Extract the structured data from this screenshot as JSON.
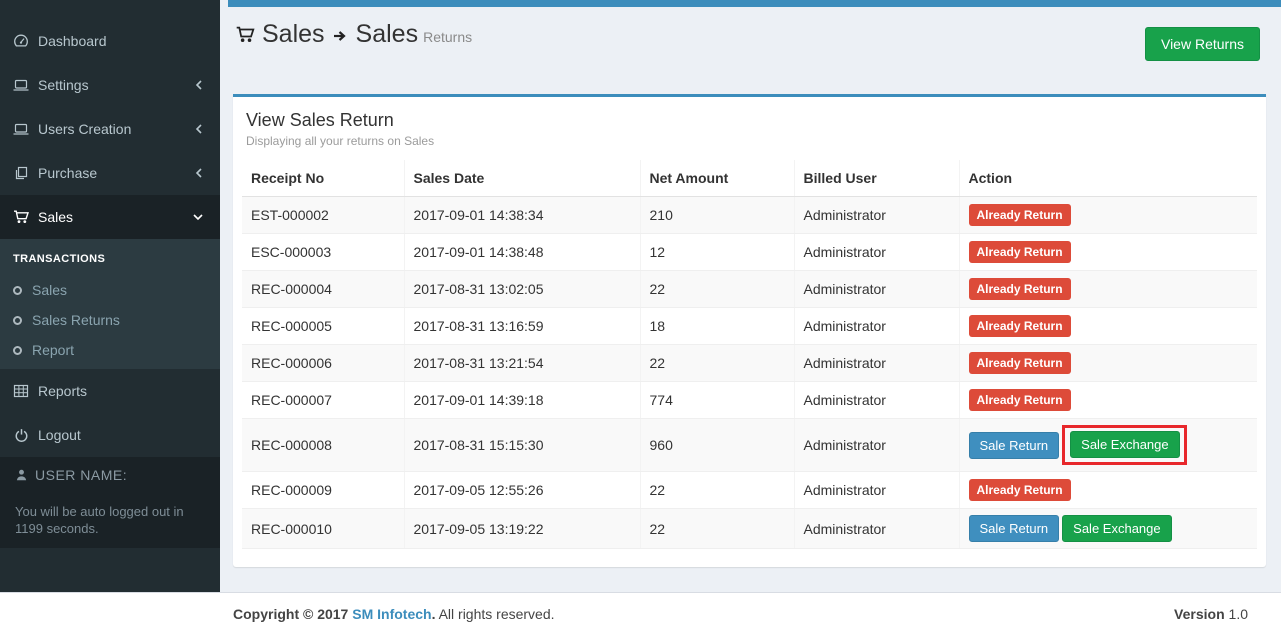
{
  "colors": {
    "accent_blue": "#3c8dbc",
    "button_blue": "#3f8fbf",
    "button_green": "#18a24b",
    "badge_red": "#dd4b39",
    "highlight_red": "#e8282c",
    "sidebar_bg": "#222d32",
    "sidebar_active_bg": "#1a2226",
    "submenu_bg": "#2c3b41",
    "content_bg": "#ecf0f5"
  },
  "sidebar": {
    "items": [
      {
        "label": "Dashboard"
      },
      {
        "label": "Settings"
      },
      {
        "label": "Users Creation"
      },
      {
        "label": "Purchase"
      },
      {
        "label": "Sales"
      }
    ],
    "submenu_header": "TRANSACTIONS",
    "submenu": [
      {
        "label": "Sales"
      },
      {
        "label": "Sales Returns"
      },
      {
        "label": "Report"
      }
    ],
    "items_bottom": [
      {
        "label": "Reports"
      },
      {
        "label": "Logout"
      }
    ],
    "user_panel": {
      "label": "USER NAME:",
      "message_line1": "You will be auto logged out in",
      "message_line2": "1199 seconds."
    }
  },
  "header": {
    "title_primary": "Sales",
    "title_secondary": "Sales",
    "title_small": "Returns",
    "view_returns_label": "View Returns"
  },
  "panel": {
    "title": "View Sales Return",
    "subtitle": "Displaying all your returns on Sales"
  },
  "table": {
    "columns": [
      "Receipt No",
      "Sales Date",
      "Net Amount",
      "Billed User",
      "Action"
    ],
    "action_labels": {
      "already": "Already Return",
      "return": "Sale Return",
      "exchange": "Sale Exchange"
    },
    "rows": [
      {
        "receipt": "EST-000002",
        "date": "2017-09-01 14:38:34",
        "amount": "210",
        "user": "Administrator",
        "actions": [
          "already"
        ],
        "highlight": null
      },
      {
        "receipt": "ESC-000003",
        "date": "2017-09-01 14:38:48",
        "amount": "12",
        "user": "Administrator",
        "actions": [
          "already"
        ],
        "highlight": null
      },
      {
        "receipt": "REC-000004",
        "date": "2017-08-31 13:02:05",
        "amount": "22",
        "user": "Administrator",
        "actions": [
          "already"
        ],
        "highlight": null
      },
      {
        "receipt": "REC-000005",
        "date": "2017-08-31 13:16:59",
        "amount": "18",
        "user": "Administrator",
        "actions": [
          "already"
        ],
        "highlight": null
      },
      {
        "receipt": "REC-000006",
        "date": "2017-08-31 13:21:54",
        "amount": "22",
        "user": "Administrator",
        "actions": [
          "already"
        ],
        "highlight": null
      },
      {
        "receipt": "REC-000007",
        "date": "2017-09-01 14:39:18",
        "amount": "774",
        "user": "Administrator",
        "actions": [
          "already"
        ],
        "highlight": null
      },
      {
        "receipt": "REC-000008",
        "date": "2017-08-31 15:15:30",
        "amount": "960",
        "user": "Administrator",
        "actions": [
          "return",
          "exchange"
        ],
        "highlight": "exchange"
      },
      {
        "receipt": "REC-000009",
        "date": "2017-09-05 12:55:26",
        "amount": "22",
        "user": "Administrator",
        "actions": [
          "already"
        ],
        "highlight": null
      },
      {
        "receipt": "REC-000010",
        "date": "2017-09-05 13:19:22",
        "amount": "22",
        "user": "Administrator",
        "actions": [
          "return",
          "exchange"
        ],
        "highlight": null
      }
    ]
  },
  "footer": {
    "copyright_prefix": "Copyright © 2017 ",
    "company": "SM Infotech",
    "company_suffix": ".",
    "rights": " All rights reserved.",
    "version_label": "Version",
    "version_value": "1.0"
  }
}
